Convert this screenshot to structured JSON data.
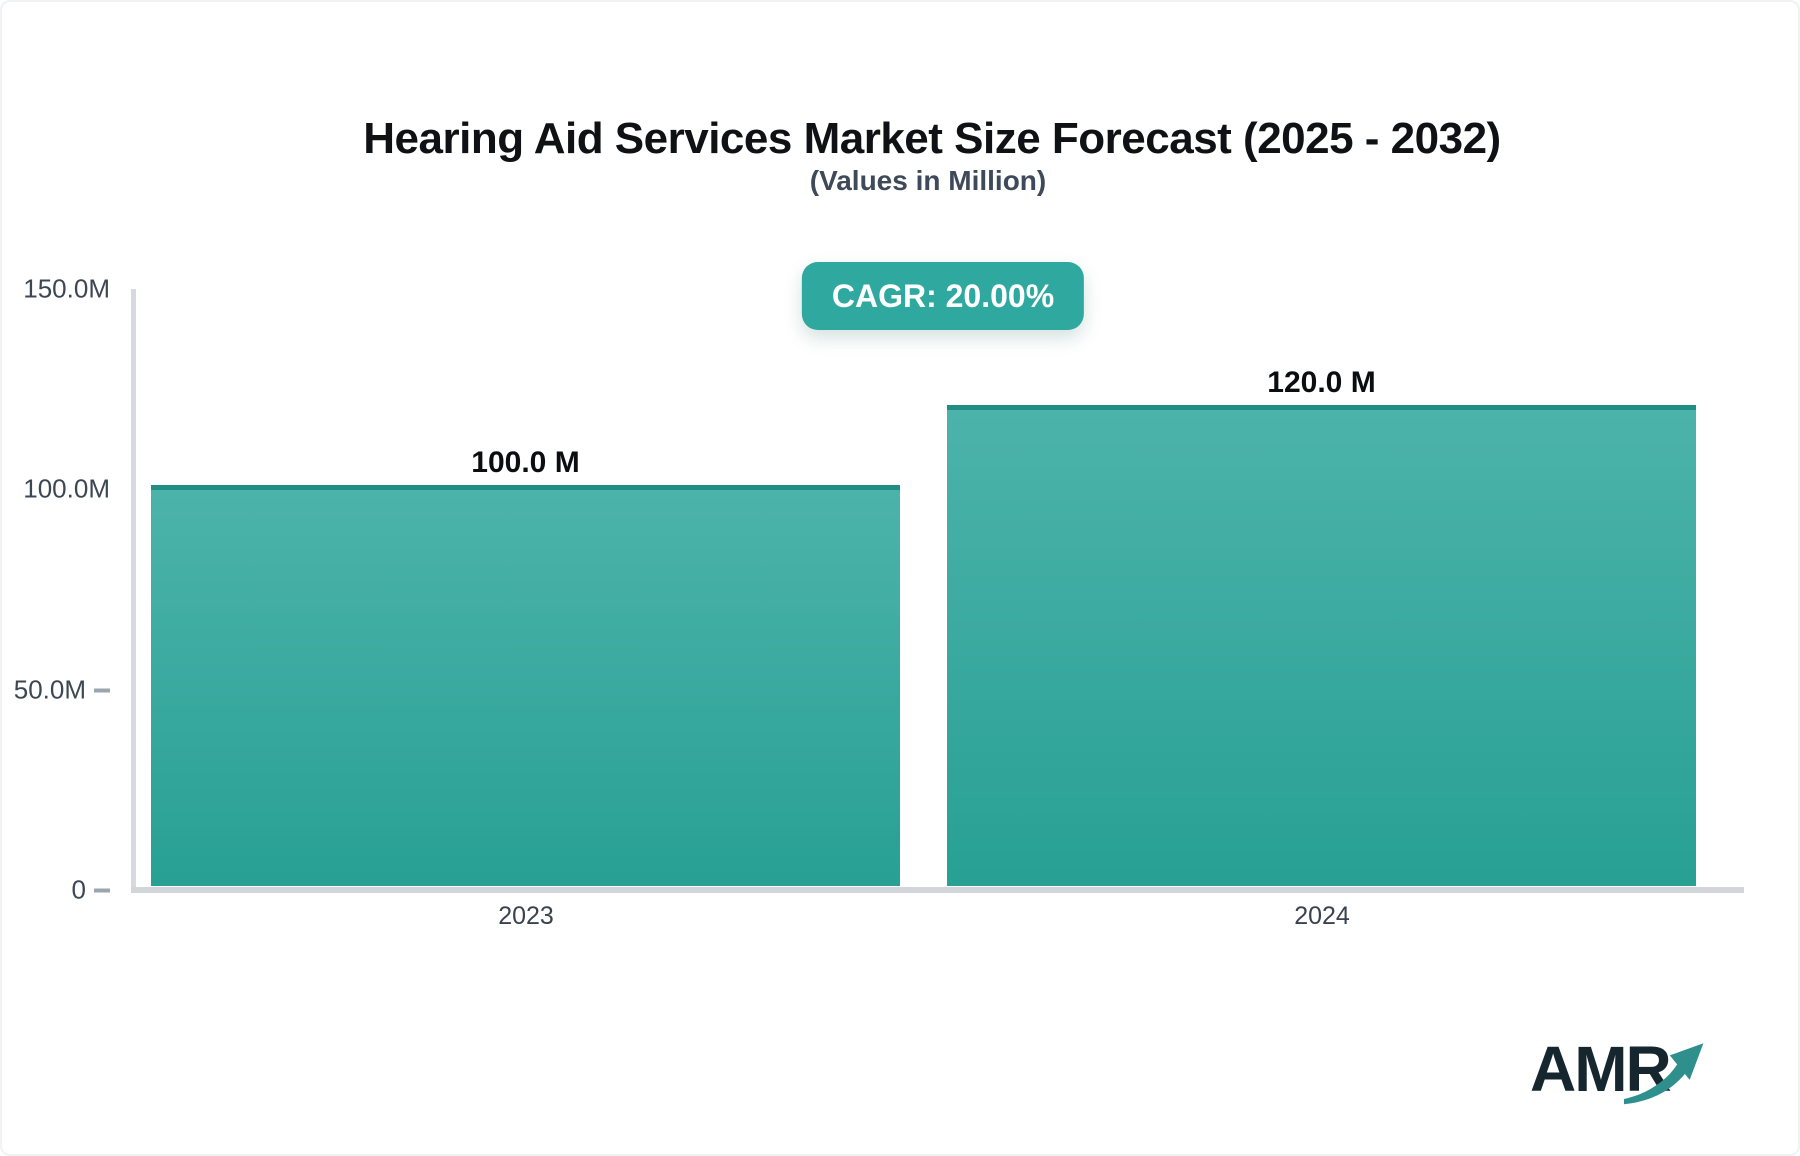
{
  "header": {
    "title": "Hearing Aid Services Market Size Forecast (2025 - 2032)",
    "subtitle": "(Values in Million)"
  },
  "cagr": {
    "label": "CAGR: 20.00%"
  },
  "chart_data": {
    "type": "bar",
    "title": "Hearing Aid Services Market Size Forecast (2025 - 2032)",
    "subtitle": "(Values in Million)",
    "categories": [
      "2023",
      "2024"
    ],
    "values": [
      100.0,
      120.0
    ],
    "value_labels": [
      "100.0 M",
      "120.0 M"
    ],
    "unit": "Million",
    "ylim": [
      0,
      150
    ],
    "yticks": [
      {
        "label": "150.0M",
        "value": 150,
        "dash": false
      },
      {
        "label": "100.0M",
        "value": 100,
        "dash": false
      },
      {
        "label": "50.0M",
        "value": 50,
        "dash": true
      },
      {
        "label": "0",
        "value": 0,
        "dash": true
      }
    ],
    "grid": false,
    "legend": "none",
    "xlabel": "",
    "ylabel": ""
  },
  "colors": {
    "badge_teal": "#2fa8a0",
    "bar_gradient_top": "#4cb3aa",
    "bar_gradient_bottom": "#28a094",
    "bar_top_border": "#218e86",
    "axis_line": "#d2d6db",
    "tick_text": "#3d4754",
    "title_text": "#0f1114",
    "logo_text": "#16262e",
    "logo_arrow": "#2e8f8c"
  },
  "logo": {
    "text": "AMR",
    "arrow_icon": "growth-arrow"
  }
}
